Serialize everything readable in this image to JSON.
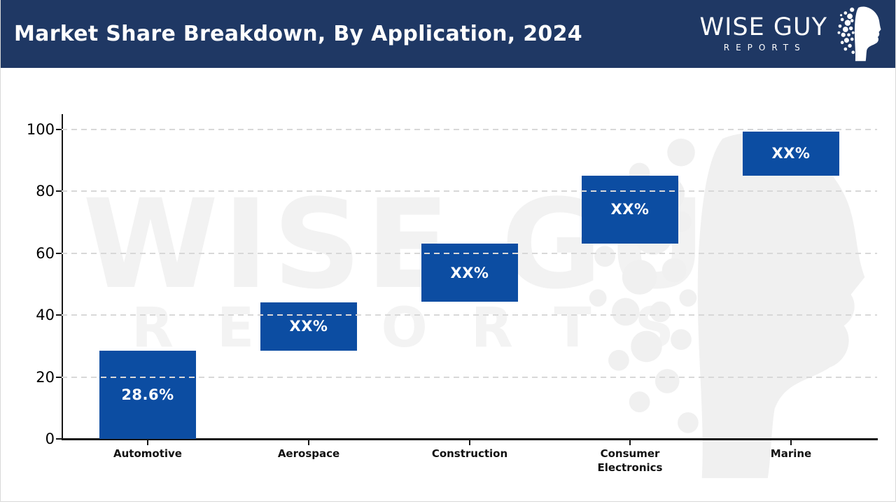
{
  "header": {
    "title": "Market Share Breakdown, By Application, 2024",
    "logo": {
      "line1": "WISE GUY",
      "line2": "REPORTS"
    }
  },
  "watermark": {
    "line1": "WISE GUY",
    "line2": "REPORTS"
  },
  "colors": {
    "header_bg": "#1f3864",
    "bar_blue": "#0c4da2",
    "grid": "#d8d8d8",
    "axis": "#161616",
    "watermark_gray": "#f2f2f2"
  },
  "chart_data": {
    "type": "bar",
    "subtype": "floating-waterfall",
    "title": "Market Share Breakdown, By Application, 2024",
    "categories": [
      "Automotive",
      "Aerospace",
      "Construction",
      "Consumer Electronics",
      "Marine"
    ],
    "bars": [
      {
        "category": "Automotive",
        "start": 0,
        "end": 28.6,
        "label": "28.6%"
      },
      {
        "category": "Aerospace",
        "start": 28.6,
        "end": 44.2,
        "label": "XX%"
      },
      {
        "category": "Construction",
        "start": 44.3,
        "end": 63.1,
        "label": "XX%"
      },
      {
        "category": "Consumer Electronics",
        "start": 63.2,
        "end": 85.0,
        "label": "XX%"
      },
      {
        "category": "Marine",
        "start": 85.1,
        "end": 99.3,
        "label": "XX%"
      }
    ],
    "ylim": [
      0,
      100
    ],
    "yticks": [
      0,
      20,
      40,
      60,
      80,
      100
    ],
    "xlabel": "",
    "ylabel": "",
    "grid": "horizontal-dashed-above-bars",
    "legend": "none",
    "bar_color": "#0c4da2",
    "bar_label_color": "#ffffff"
  }
}
